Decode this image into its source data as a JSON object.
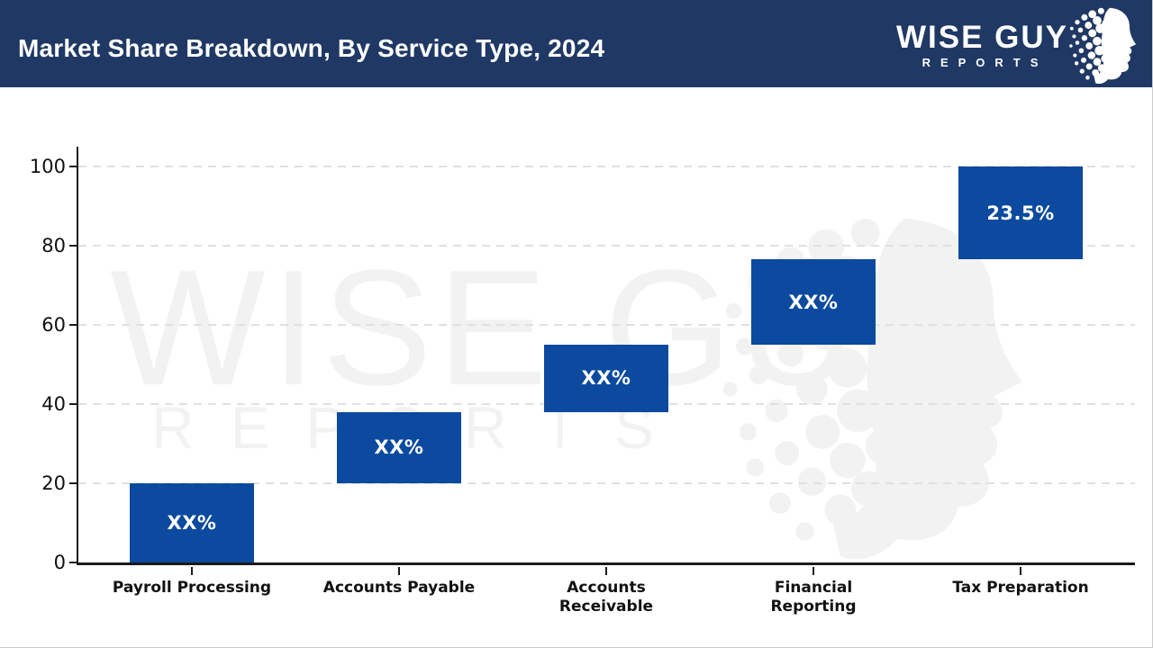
{
  "header": {
    "title": "Market Share Breakdown, By Service Type, 2024",
    "logo": {
      "line1": "WISE GUY",
      "line2": "REPORTS"
    }
  },
  "watermark": {
    "line1": "WISE GUY",
    "line2": "REPORTS"
  },
  "chart_data": {
    "type": "bar",
    "subtype": "waterfall",
    "title": "Market Share Breakdown, By Service Type, 2024",
    "categories": [
      "Payroll Processing",
      "Accounts Payable",
      "Accounts Receivable",
      "Financial Reporting",
      "Tax Preparation"
    ],
    "bars": [
      {
        "category": "Payroll Processing",
        "label_lines": [
          "Payroll Processing"
        ],
        "start": 0,
        "end": 20,
        "value_label": "XX%"
      },
      {
        "category": "Accounts Payable",
        "label_lines": [
          "Accounts Payable"
        ],
        "start": 20,
        "end": 38,
        "value_label": "XX%"
      },
      {
        "category": "Accounts Receivable",
        "label_lines": [
          "Accounts",
          "Receivable"
        ],
        "start": 38,
        "end": 55,
        "value_label": "XX%"
      },
      {
        "category": "Financial Reporting",
        "label_lines": [
          "Financial",
          "Reporting"
        ],
        "start": 55,
        "end": 76.5,
        "value_label": "XX%"
      },
      {
        "category": "Tax Preparation",
        "label_lines": [
          "Tax Preparation"
        ],
        "start": 76.5,
        "end": 100,
        "value_label": "23.5%"
      }
    ],
    "ylim": [
      0,
      100
    ],
    "yticks": [
      0,
      20,
      40,
      60,
      80,
      100
    ],
    "grid": "horizontal-dashed",
    "legend": "none"
  },
  "colors": {
    "header_bg": "#1f3864",
    "bar": "#0b4a9e",
    "bar_label": "#ffffff",
    "axis": "#1a1a1a",
    "grid": "#e0e0e0",
    "watermark": "#f2f2f2",
    "title_text": "#ffffff"
  }
}
